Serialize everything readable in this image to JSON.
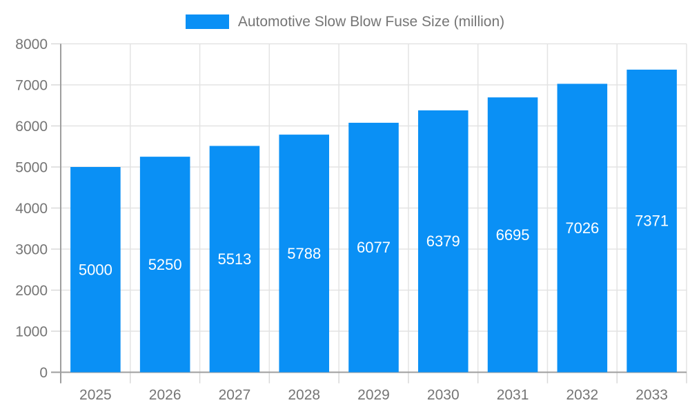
{
  "chart_data": {
    "type": "bar",
    "title": "Automotive Slow Blow Fuse Size (million)",
    "categories": [
      "2025",
      "2026",
      "2027",
      "2028",
      "2029",
      "2030",
      "2031",
      "2032",
      "2033"
    ],
    "values": [
      5000,
      5250,
      5513,
      5788,
      6077,
      6379,
      6695,
      7026,
      7371
    ],
    "series": [
      {
        "name": "Automotive Slow Blow Fuse Size (million)",
        "values": [
          5000,
          5250,
          5513,
          5788,
          6077,
          6379,
          6695,
          7026,
          7371
        ]
      }
    ],
    "xlabel": "",
    "ylabel": "",
    "ylim": [
      0,
      8000
    ],
    "ytick_step": 1000,
    "yticks": [
      "0",
      "1000",
      "2000",
      "3000",
      "4000",
      "5000",
      "6000",
      "7000",
      "8000"
    ],
    "grid": true,
    "legend_position": "top",
    "bar_labels_visible": true,
    "bar_label_position": "inside-center",
    "colors": {
      "bar": "#0A90F5",
      "bar_label_text": "#FFFFFF",
      "axis_text": "#757575",
      "legend_text": "#757575",
      "gridline": "#E3E3E3",
      "tick": "#D9D9D9",
      "axis_line": "#9E9E9E",
      "background": "#FFFFFF"
    }
  }
}
